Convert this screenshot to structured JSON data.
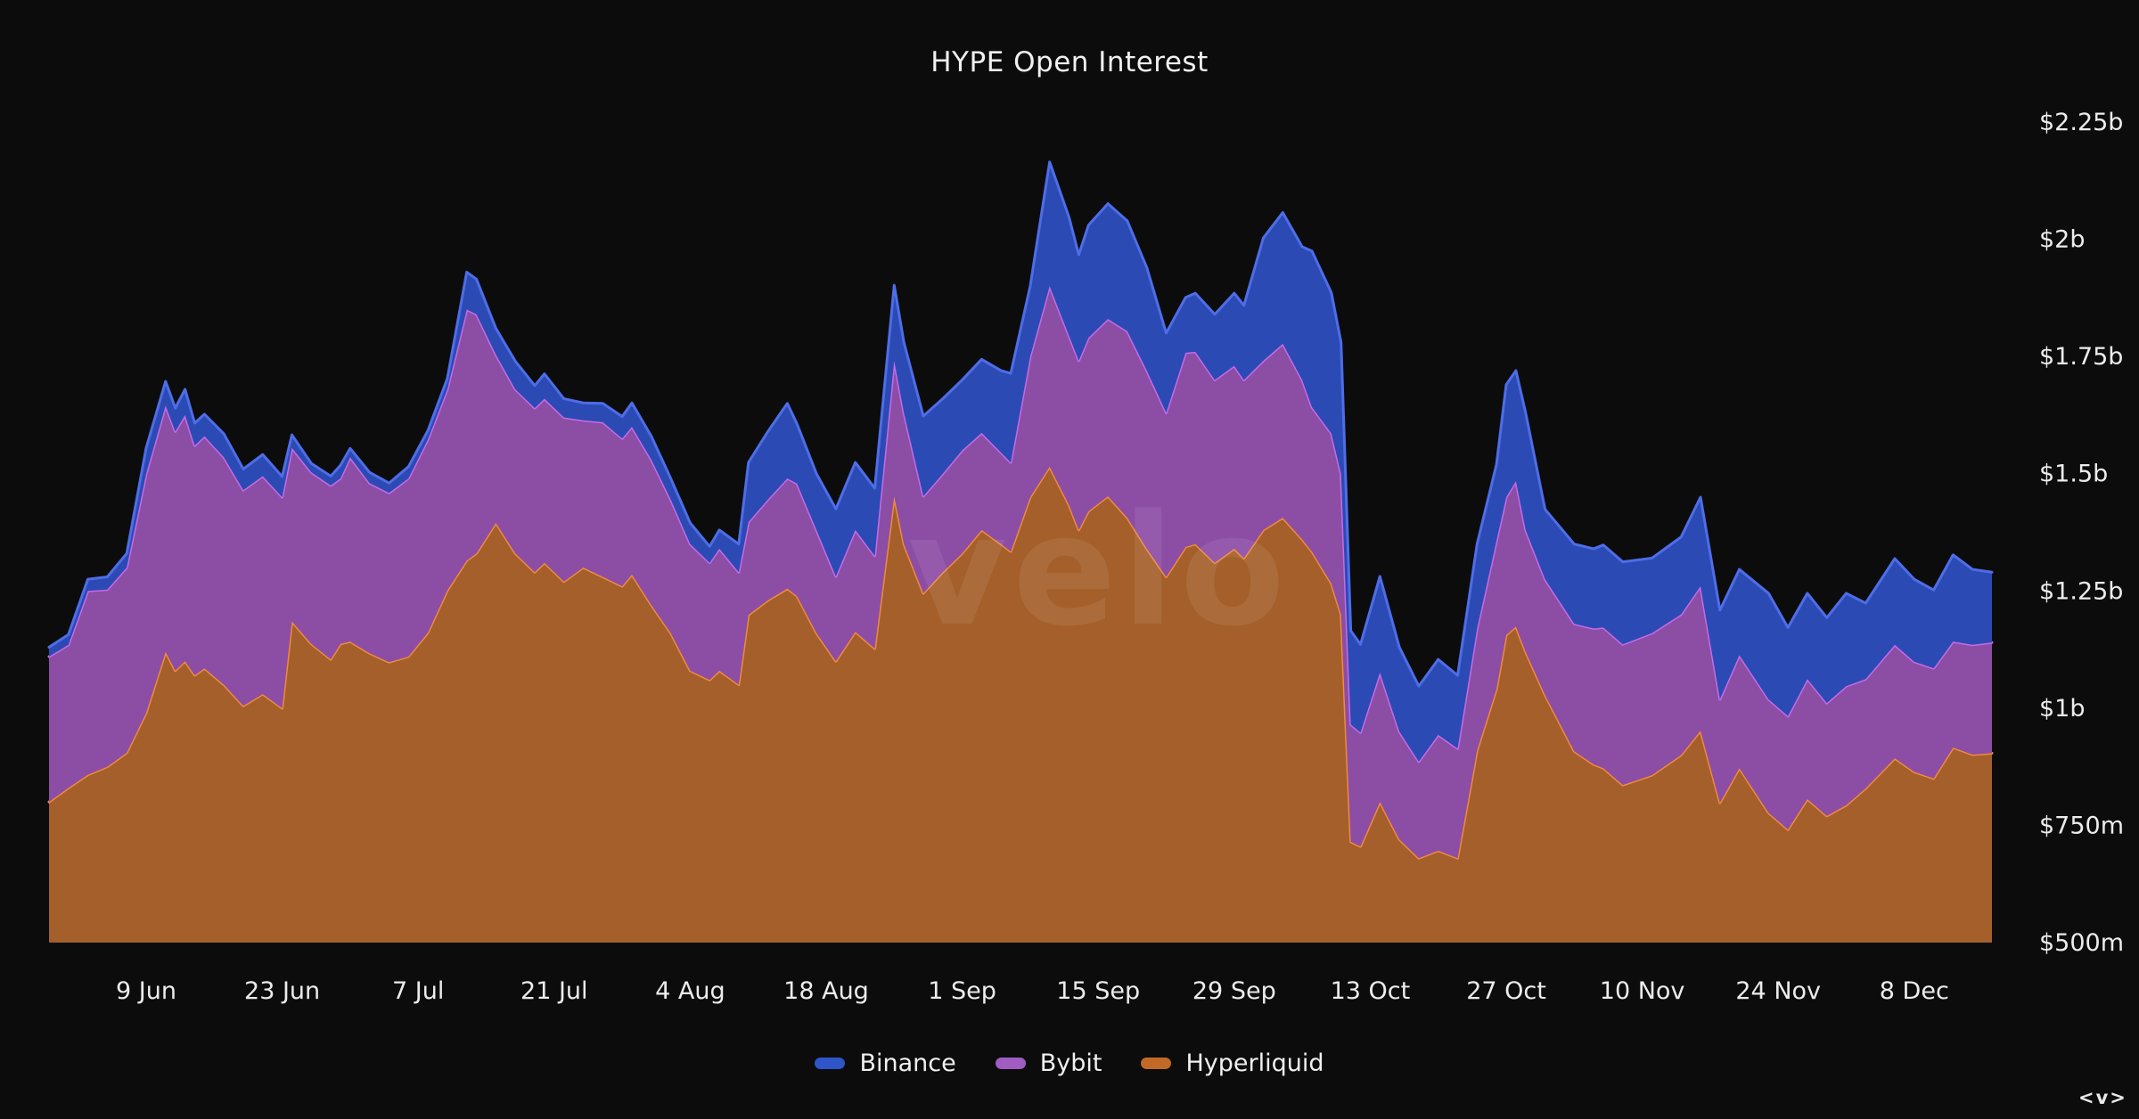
{
  "title": "HYPE Open Interest",
  "watermark_text": "velo",
  "logo_mark": "<v>",
  "colors": {
    "background": "#0c0c0c",
    "text": "#f0f0f0",
    "binance_fill": "#2b4ab4",
    "binance_stroke": "#4e6de8",
    "bybit_fill": "#8c4da4",
    "bybit_stroke": "#c76ae8",
    "hyperliquid_fill": "#a45f2a",
    "hyperliquid_stroke": "#ef8a3d"
  },
  "legend": {
    "items": [
      {
        "label": "Binance",
        "color": "#2f55c8"
      },
      {
        "label": "Bybit",
        "color": "#a05cc0"
      },
      {
        "label": "Hyperliquid",
        "color": "#c2692a"
      }
    ]
  },
  "chart_data": {
    "type": "area",
    "stacked": true,
    "title": "HYPE Open Interest",
    "unit_note": "values in $ millions, y-axis starts at $500m",
    "ylim": [
      500,
      2250
    ],
    "grid": false,
    "legend_position": "bottom",
    "y_axis_side": "right",
    "x_ticks": [
      {
        "label": "9 Jun",
        "day": 10
      },
      {
        "label": "23 Jun",
        "day": 24
      },
      {
        "label": "7 Jul",
        "day": 38
      },
      {
        "label": "21 Jul",
        "day": 52
      },
      {
        "label": "4 Aug",
        "day": 66
      },
      {
        "label": "18 Aug",
        "day": 80
      },
      {
        "label": "1 Sep",
        "day": 94
      },
      {
        "label": "15 Sep",
        "day": 108
      },
      {
        "label": "29 Sep",
        "day": 122
      },
      {
        "label": "13 Oct",
        "day": 136
      },
      {
        "label": "27 Oct",
        "day": 150
      },
      {
        "label": "10 Nov",
        "day": 164
      },
      {
        "label": "24 Nov",
        "day": 178
      },
      {
        "label": "8 Dec",
        "day": 192
      }
    ],
    "y_ticks": [
      {
        "value": 2250,
        "label": "$2.25b"
      },
      {
        "value": 2000,
        "label": "$2b"
      },
      {
        "value": 1750,
        "label": "$1.75b"
      },
      {
        "value": 1500,
        "label": "$1.5b"
      },
      {
        "value": 1250,
        "label": "$1.25b"
      },
      {
        "value": 1000,
        "label": "$1b"
      },
      {
        "value": 750,
        "label": "$750m"
      },
      {
        "value": 500,
        "label": "$500m"
      }
    ],
    "days": [
      0,
      2,
      4,
      6,
      8,
      10,
      12,
      13,
      14,
      15,
      16,
      18,
      20,
      22,
      24,
      25,
      27,
      29,
      30,
      31,
      33,
      35,
      37,
      39,
      41,
      43,
      44,
      46,
      48,
      50,
      51,
      53,
      55,
      57,
      59,
      60,
      62,
      64,
      66,
      68,
      69,
      71,
      72,
      74,
      76,
      77,
      79,
      81,
      83,
      85,
      87,
      88,
      90,
      92,
      94,
      96,
      98,
      99,
      101,
      103,
      105,
      106,
      107,
      109,
      111,
      113,
      115,
      117,
      118,
      120,
      122,
      123,
      125,
      127,
      129,
      130,
      132,
      133,
      134,
      135,
      137,
      139,
      141,
      143,
      145,
      147,
      149,
      150,
      151,
      152,
      154,
      157,
      159,
      160,
      162,
      165,
      168,
      170,
      172,
      174,
      177,
      179,
      181,
      183,
      185,
      187,
      190,
      192,
      194,
      196,
      198,
      200
    ],
    "series": [
      {
        "name": "Hyperliquid",
        "fill": "#a45f2a",
        "stroke": "#ef8a3d",
        "values": [
          800,
          830,
          858,
          875,
          905,
          990,
          1120,
          1080,
          1100,
          1070,
          1085,
          1050,
          1005,
          1030,
          1000,
          1185,
          1137,
          1104,
          1137,
          1142,
          1117,
          1098,
          1110,
          1161,
          1251,
          1315,
          1330,
          1395,
          1330,
          1290,
          1310,
          1270,
          1300,
          1280,
          1260,
          1285,
          1220,
          1160,
          1080,
          1060,
          1080,
          1050,
          1199,
          1230,
          1255,
          1239,
          1160,
          1100,
          1163,
          1127,
          1452,
          1350,
          1245,
          1290,
          1330,
          1380,
          1350,
          1334,
          1450,
          1515,
          1433,
          1380,
          1420,
          1452,
          1406,
          1340,
          1280,
          1344,
          1350,
          1310,
          1340,
          1320,
          1380,
          1406,
          1360,
          1334,
          1266,
          1200,
          715,
          705,
          800,
          720,
          680,
          696,
          680,
          910,
          1041,
          1156,
          1174,
          1120,
          1028,
          908,
          880,
          872,
          836,
          857,
          900,
          952,
          798,
          872,
          777,
          741,
          806,
          770,
          793,
          829,
          893,
          864,
          850,
          916,
          901,
          904
        ]
      },
      {
        "name": "Bybit",
        "fill": "#8c4da4",
        "stroke": "#c76ae8",
        "values": [
          310,
          305,
          392,
          378,
          395,
          510,
          525,
          510,
          525,
          490,
          495,
          485,
          460,
          465,
          450,
          370,
          366,
          371,
          353,
          393,
          363,
          361,
          380,
          412,
          429,
          535,
          510,
          359,
          350,
          350,
          350,
          350,
          314,
          330,
          315,
          315,
          310,
          285,
          270,
          250,
          260,
          240,
          198,
          215,
          235,
          240,
          220,
          181,
          217,
          198,
          289,
          280,
          207,
          210,
          220,
          207,
          195,
          190,
          300,
          385,
          361,
          361,
          370,
          378,
          398,
          380,
          350,
          414,
          410,
          390,
          390,
          380,
          361,
          371,
          340,
          308,
          320,
          300,
          250,
          243,
          276,
          230,
          206,
          247,
          234,
          260,
          316,
          294,
          310,
          260,
          247,
          272,
          290,
          300,
          300,
          303,
          300,
          308,
          221,
          241,
          242,
          242,
          256,
          241,
          254,
          233,
          242,
          235,
          235,
          226,
          234,
          236
        ]
      },
      {
        "name": "Binance",
        "fill": "#2b4ab4",
        "stroke": "#4e6de8",
        "values": [
          20,
          22,
          25,
          27,
          30,
          55,
          52,
          50,
          55,
          48,
          47,
          50,
          45,
          46,
          44,
          28,
          19,
          20,
          28,
          19,
          23,
          21,
          25,
          19,
          23,
          80,
          75,
          56,
          60,
          48,
          53,
          40,
          37,
          40,
          47,
          51,
          50,
          45,
          45,
          35,
          40,
          60,
          127,
          145,
          160,
          127,
          120,
          144,
          144,
          144,
          161,
          150,
          171,
          160,
          150,
          157,
          175,
          190,
          150,
          265,
          253,
          226,
          240,
          246,
          235,
          220,
          170,
          118,
          125,
          140,
          155,
          159,
          262,
          280,
          284,
          333,
          300,
          280,
          200,
          188,
          205,
          180,
          161,
          161,
          156,
          180,
          163,
          240,
          236,
          250,
          149,
          170,
          170,
          176,
          176,
          160,
          165,
          190,
          190,
          183,
          226,
          189,
          183,
          182,
          198,
          162,
          184,
          176,
          167,
          185,
          161,
          150
        ]
      }
    ]
  }
}
